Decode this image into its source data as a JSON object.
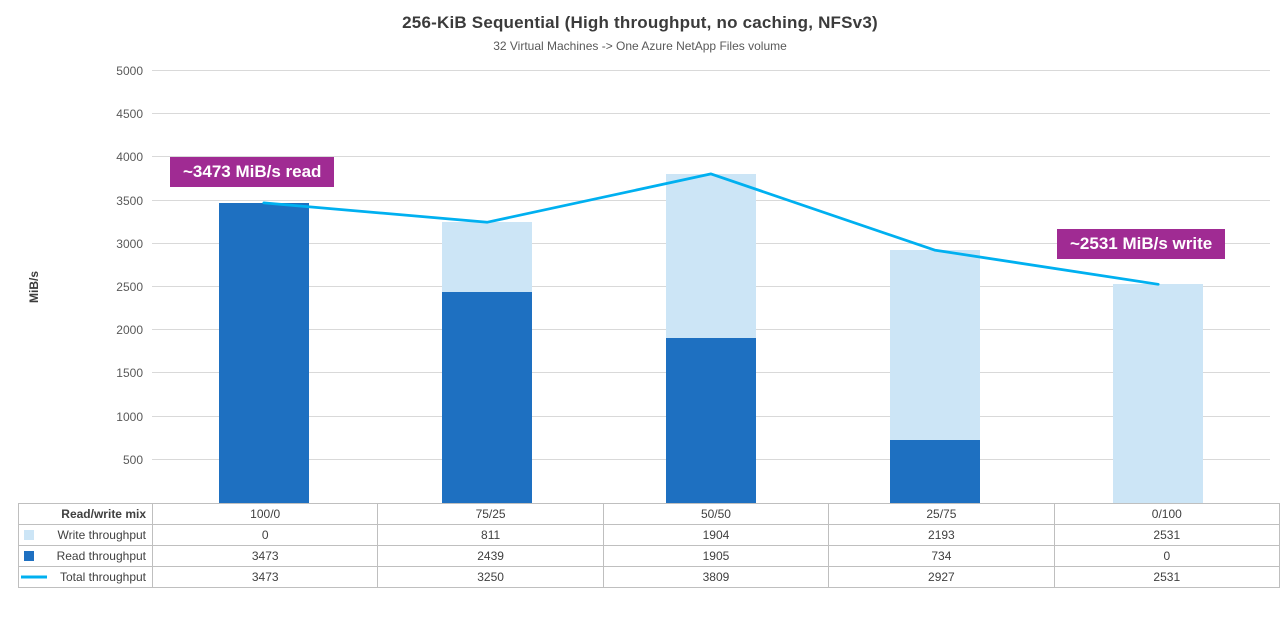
{
  "chart": {
    "title": "256-KiB Sequential (High throughput, no caching, NFSv3)",
    "subtitle": "32 Virtual Machines -> One Azure NetApp Files volume",
    "y_axis_title": "MiB/s"
  },
  "chart_data": {
    "type": "bar",
    "stacked": true,
    "title": "256-KiB Sequential (High throughput, no caching, NFSv3)",
    "subtitle": "32 Virtual Machines -> One Azure NetApp Files volume",
    "xlabel": "Read/write mix",
    "ylabel": "MiB/s",
    "ylim": [
      0,
      5000
    ],
    "ytick_step": 500,
    "grid": true,
    "legend_position": "table-below",
    "category_axis_label": "Read/write mix",
    "categories": [
      "100/0",
      "75/25",
      "50/50",
      "25/75",
      "0/100"
    ],
    "series": [
      {
        "name": "Write throughput",
        "type": "bar",
        "color": "#CCE5F6",
        "values": [
          0,
          811,
          1904,
          2193,
          2531
        ]
      },
      {
        "name": "Read throughput",
        "type": "bar",
        "color": "#1E70C1",
        "values": [
          3473,
          2439,
          1905,
          734,
          0
        ]
      },
      {
        "name": "Total throughput",
        "type": "line",
        "color": "#00B0F0",
        "values": [
          3473,
          3250,
          3809,
          2927,
          2531
        ]
      }
    ]
  },
  "annotations": [
    {
      "text": "~3473 MiB/s read",
      "color": "#A02B93"
    },
    {
      "text": "~2531 MiB/s write",
      "color": "#A02B93"
    }
  ],
  "colors": {
    "gridline": "#D9D9D9",
    "table_border": "#BFBFBF",
    "title_text": "#3B3B3B",
    "axis_text": "#595959"
  }
}
